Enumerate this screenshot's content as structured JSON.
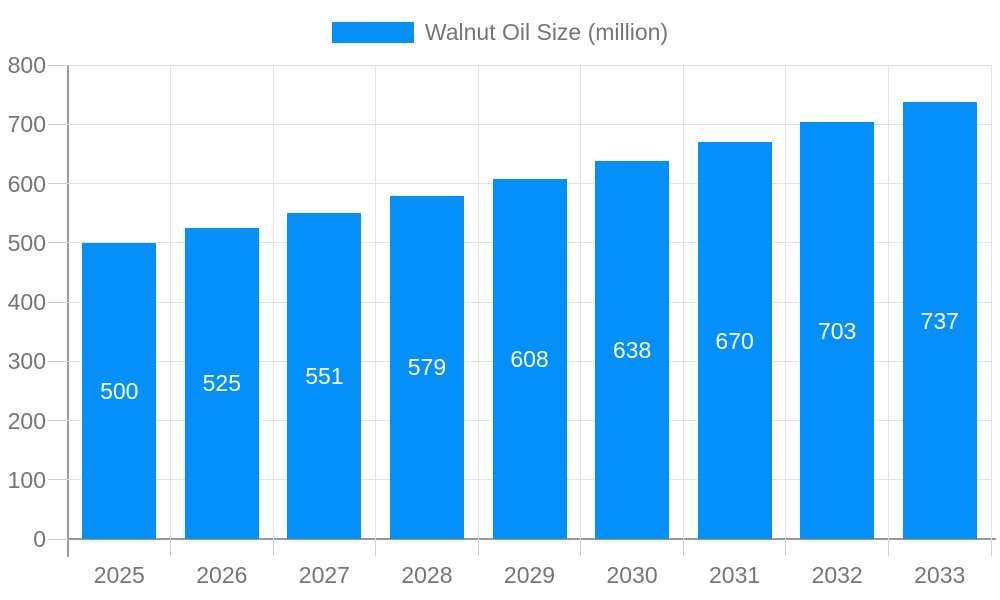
{
  "legend": {
    "label": "Walnut Oil Size (million)"
  },
  "colors": {
    "bar": "#0590f9",
    "axis": "#9a9a9a",
    "gridline": "#e3e3e3",
    "tick": "#cfcfcf",
    "text": "#757575",
    "value_label": "#ffffff",
    "background": "#ffffff"
  },
  "chart_data": {
    "type": "bar",
    "title": "",
    "legend": [
      "Walnut Oil Size (million)"
    ],
    "legend_position": "top-center",
    "categories": [
      "2025",
      "2026",
      "2027",
      "2028",
      "2029",
      "2030",
      "2031",
      "2032",
      "2033"
    ],
    "series": [
      {
        "name": "Walnut Oil Size (million)",
        "values": [
          500,
          525,
          551,
          579,
          608,
          638,
          670,
          703,
          737
        ]
      }
    ],
    "value_labels": "inside, vertically centered, white",
    "xlabel": "",
    "ylabel": "",
    "ylim": [
      0,
      800
    ],
    "yticks": [
      0,
      100,
      200,
      300,
      400,
      500,
      600,
      700,
      800
    ],
    "grid": "horizontal and vertical light gray gridlines"
  }
}
